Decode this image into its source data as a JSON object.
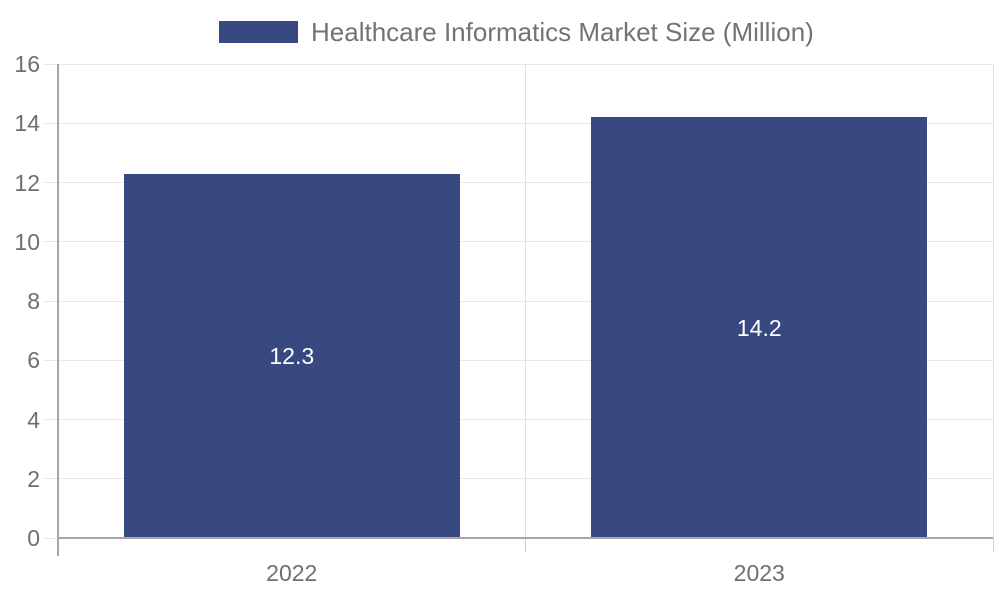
{
  "legend": {
    "label": "Healthcare Informatics Market Size (Million)"
  },
  "chart_data": {
    "type": "bar",
    "title": "Healthcare Informatics Market Size (Million)",
    "categories": [
      "2022",
      "2023"
    ],
    "values": [
      12.3,
      14.2
    ],
    "value_labels": [
      "12.3",
      "14.2"
    ],
    "xlabel": "",
    "ylabel": "",
    "ylim": [
      0,
      16
    ],
    "yticks": [
      0,
      2,
      4,
      6,
      8,
      10,
      12,
      14,
      16
    ],
    "grid": true,
    "legend_position": "top-center",
    "bar_color": "#384982",
    "value_label_color": "#ffffff",
    "axis_text_color": "#6f6f6f",
    "background_color": "#ffffff"
  }
}
